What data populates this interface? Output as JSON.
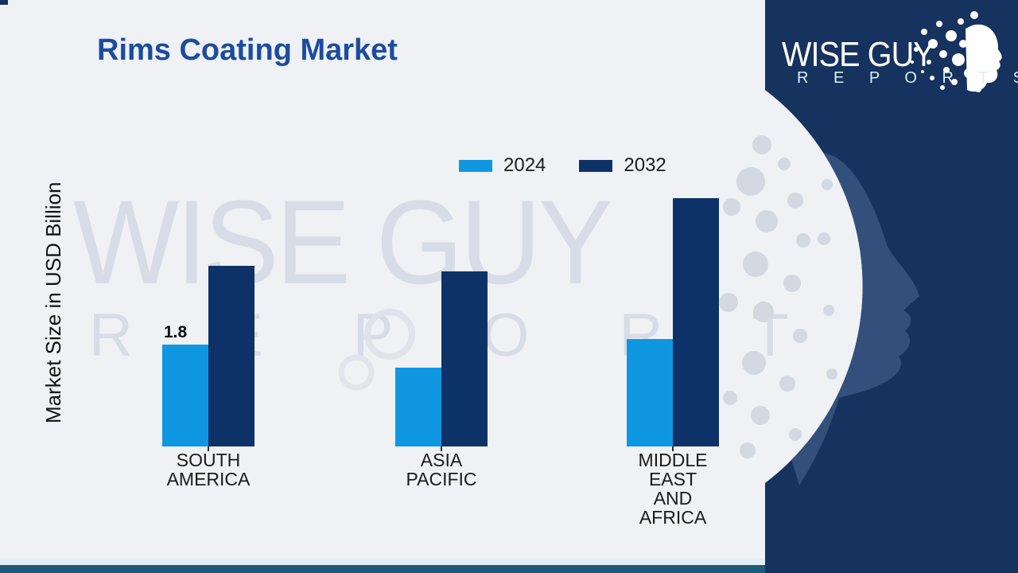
{
  "title": {
    "text": "Rims Coating Market",
    "color": "#1b4c9e"
  },
  "y_axis_label": "Market Size in USD Billion",
  "legend": {
    "items": [
      {
        "label": "2024",
        "color": "#0f97e1"
      },
      {
        "label": "2032",
        "color": "#0d3268"
      }
    ]
  },
  "chart_data": {
    "type": "bar",
    "categories": [
      "SOUTH AMERICA",
      "ASIA PACIFIC",
      "MIDDLE EAST AND AFRICA"
    ],
    "category_lines": [
      [
        "SOUTH",
        "AMERICA"
      ],
      [
        "ASIA",
        "PACIFIC"
      ],
      [
        "MIDDLE",
        "EAST",
        "AND",
        "AFRICA"
      ]
    ],
    "series": [
      {
        "name": "2024",
        "color": "#0f97e1",
        "values": [
          1.8,
          1.4,
          1.9
        ],
        "value_labels": [
          "1.8",
          "",
          ""
        ]
      },
      {
        "name": "2032",
        "color": "#0d3268",
        "values": [
          3.2,
          3.1,
          4.4
        ],
        "value_labels": [
          "",
          "",
          ""
        ]
      }
    ],
    "title": "Rims Coating Market",
    "xlabel": "",
    "ylabel": "Market Size in USD Billion",
    "ylim": [
      0,
      5
    ],
    "grid": false,
    "legend_position": "top-right",
    "value_unit": "USD Billion"
  },
  "watermark": {
    "line1": "WISE GUY",
    "line2": "R E P O R T S"
  },
  "logo": {
    "line1": "WISE GUY",
    "line2": "R E P O R T S"
  },
  "colors": {
    "background": "#eff1f4",
    "brand_navy": "#16325e",
    "brand_teal": "#1e5a77",
    "bar_2024": "#0f97e1",
    "bar_2032": "#0d3268",
    "watermark": "#d8dce6",
    "title_blue": "#1b4c9e"
  }
}
